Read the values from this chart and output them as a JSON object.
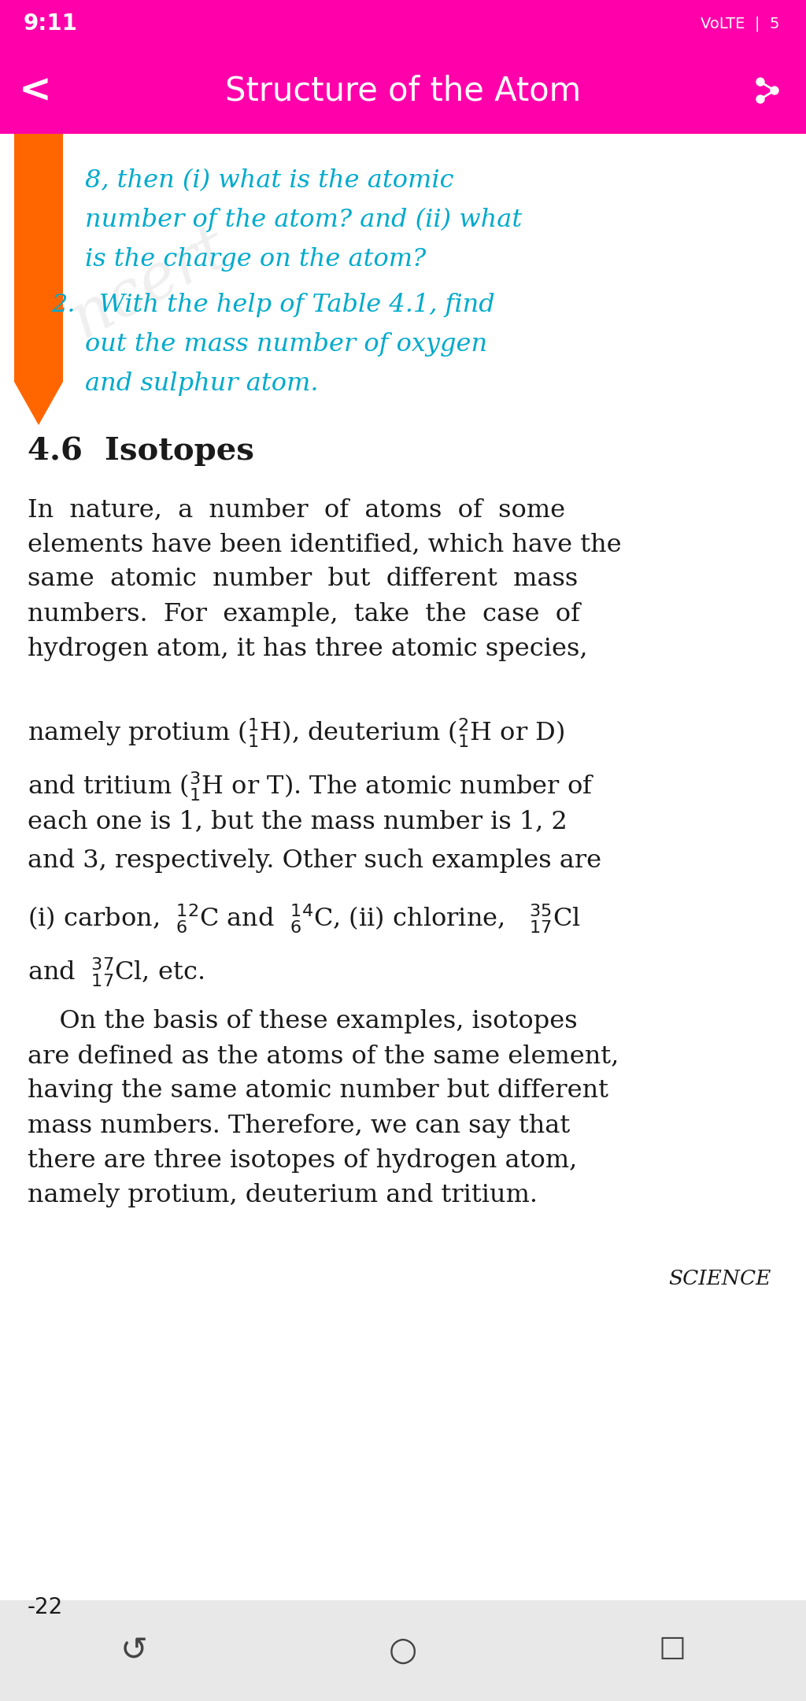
{
  "status_bar_time": "9:11",
  "page_title": "Structure of the Atom",
  "header_bg": "#FF00AA",
  "header_text_color": "#FFFFFF",
  "content_bg": "#FFFFFF",
  "italic_text_color": "#00AACC",
  "body_text_color": "#1a1a1a",
  "section_heading": "4.6  Isotopes",
  "science_label": "SCIENCE",
  "page_number": "-22"
}
